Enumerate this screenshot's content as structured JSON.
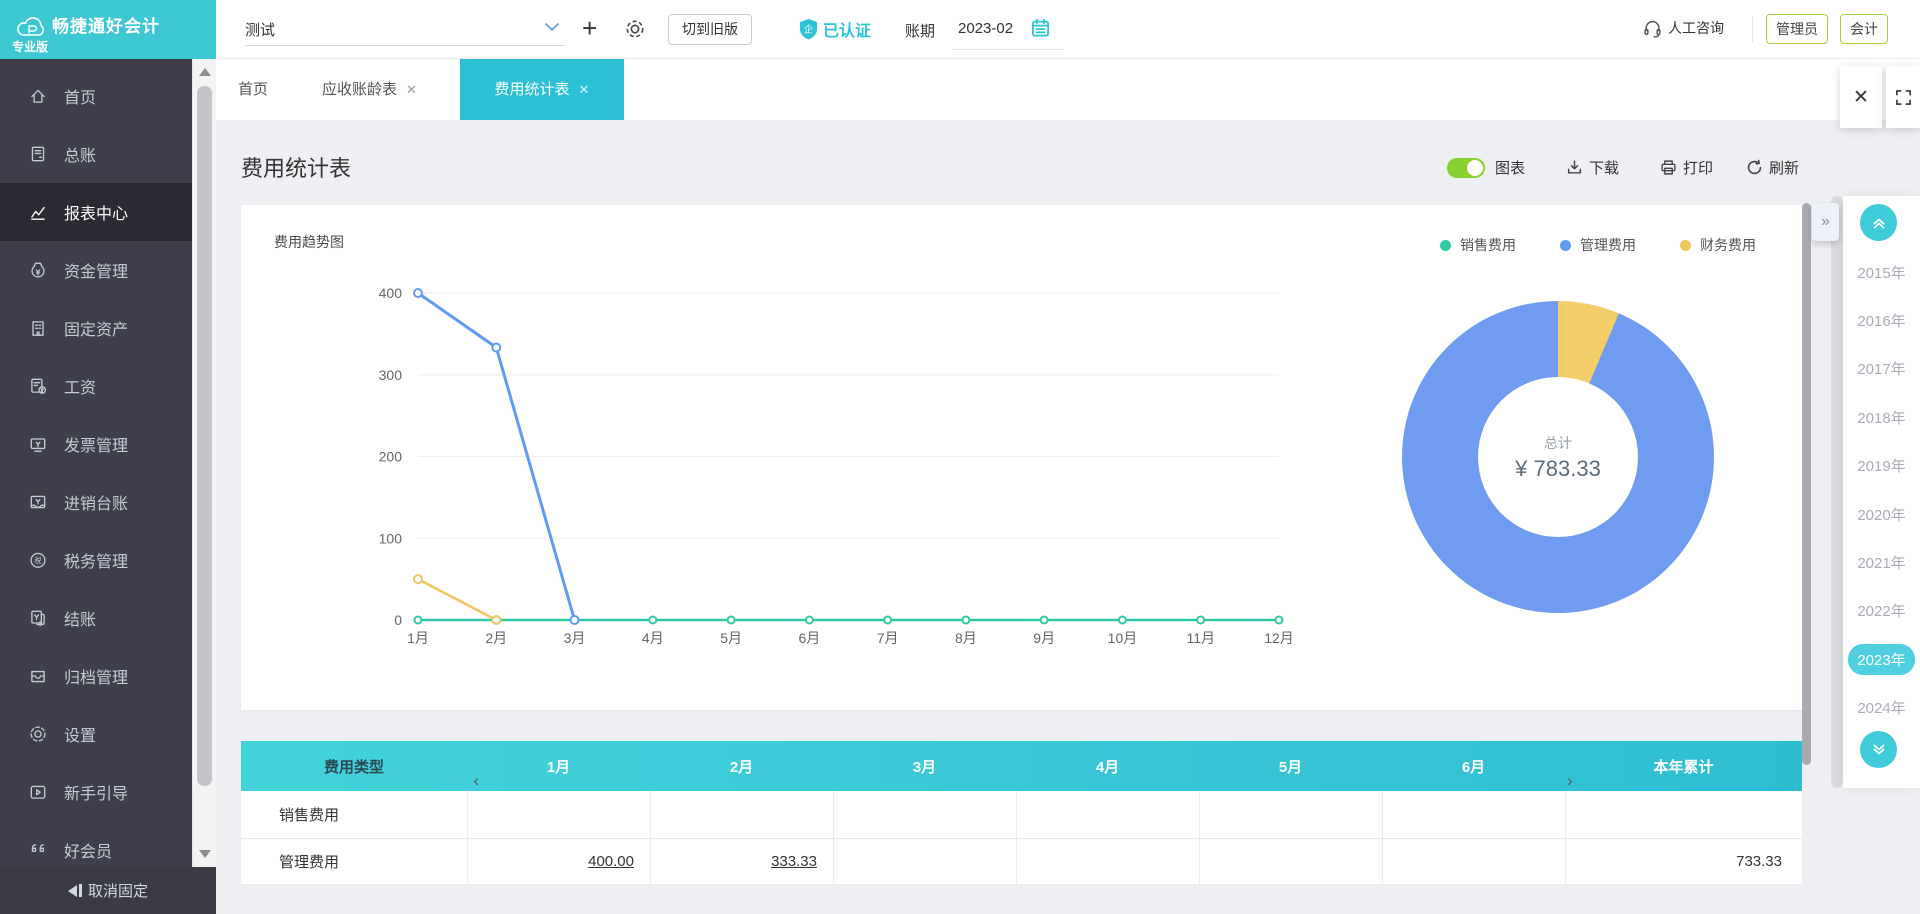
{
  "brand": {
    "name": "畅捷通好会计",
    "edition": "专业版"
  },
  "topbar": {
    "account_name": "测试",
    "switch_old_label": "切到旧版",
    "certified_label": "已认证",
    "period_label": "账期",
    "period_value": "2023-02",
    "support_label": "人工咨询",
    "admin_label": "管理员",
    "accountant_label": "会计"
  },
  "sidebar": {
    "items": [
      {
        "id": "home",
        "label": "首页",
        "active": false
      },
      {
        "id": "ledger",
        "label": "总账",
        "active": false
      },
      {
        "id": "reports",
        "label": "报表中心",
        "active": true
      },
      {
        "id": "funds",
        "label": "资金管理",
        "active": false
      },
      {
        "id": "assets",
        "label": "固定资产",
        "active": false
      },
      {
        "id": "salary",
        "label": "工资",
        "active": false
      },
      {
        "id": "invoice",
        "label": "发票管理",
        "active": false
      },
      {
        "id": "trade",
        "label": "进销台账",
        "active": false
      },
      {
        "id": "tax",
        "label": "税务管理",
        "active": false
      },
      {
        "id": "closing",
        "label": "结账",
        "active": false
      },
      {
        "id": "archive",
        "label": "归档管理",
        "active": false
      },
      {
        "id": "settings",
        "label": "设置",
        "active": false
      },
      {
        "id": "guide",
        "label": "新手引导",
        "active": false
      },
      {
        "id": "member",
        "label": "好会员",
        "active": false
      }
    ],
    "unpin_label": "取消固定"
  },
  "tabs": [
    {
      "label": "首页",
      "closable": false,
      "active": false
    },
    {
      "label": "应收账龄表",
      "closable": true,
      "active": false
    },
    {
      "label": "费用统计表",
      "closable": true,
      "active": true
    }
  ],
  "page": {
    "title": "费用统计表",
    "toolbar": {
      "chart_toggle_label": "图表",
      "toggle_on": true,
      "download_label": "下载",
      "print_label": "打印",
      "refresh_label": "刷新"
    }
  },
  "chart_data": [
    {
      "type": "line",
      "title": "费用趋势图",
      "x": [
        "1月",
        "2月",
        "3月",
        "4月",
        "5月",
        "6月",
        "7月",
        "8月",
        "9月",
        "10月",
        "11月",
        "12月"
      ],
      "series": [
        {
          "name": "销售费用",
          "color": "#32c8a4",
          "values": [
            0,
            0,
            0,
            0,
            0,
            0,
            0,
            0,
            0,
            0,
            0,
            0
          ]
        },
        {
          "name": "管理费用",
          "color": "#5f9bf2",
          "values": [
            400,
            333.33,
            0,
            null,
            null,
            null,
            null,
            null,
            null,
            null,
            null,
            null
          ]
        },
        {
          "name": "财务费用",
          "color": "#f0c55e",
          "values": [
            50,
            0,
            null,
            null,
            null,
            null,
            null,
            null,
            null,
            null,
            null,
            null
          ]
        }
      ],
      "ylim": [
        0,
        400
      ],
      "yticks": [
        0,
        100,
        200,
        300,
        400
      ],
      "grid": true,
      "legend_position": "top-right"
    },
    {
      "type": "pie",
      "donut": true,
      "center_label": "总计",
      "center_value": "¥ 783.33",
      "total": 783.33,
      "slices": [
        {
          "name": "财务费用",
          "value": 50,
          "color": "#f2cd68"
        },
        {
          "name": "管理费用",
          "value": 733.33,
          "color": "#6f9cf1"
        },
        {
          "name": "销售费用",
          "value": 0,
          "color": "#32c8a4"
        }
      ]
    }
  ],
  "year_panel": {
    "years": [
      "2015年",
      "2016年",
      "2017年",
      "2018年",
      "2019年",
      "2020年",
      "2021年",
      "2022年",
      "2023年",
      "2024年"
    ],
    "selected": "2023年"
  },
  "table": {
    "type_header": "费用类型",
    "months": [
      "1月",
      "2月",
      "3月",
      "4月",
      "5月",
      "6月"
    ],
    "total_header": "本年累计",
    "rows": [
      {
        "name": "销售费用",
        "cells": [
          "",
          "",
          "",
          "",
          "",
          ""
        ],
        "total": "",
        "links": []
      },
      {
        "name": "管理费用",
        "cells": [
          "400.00",
          "333.33",
          "",
          "",
          "",
          ""
        ],
        "total": "733.33",
        "links": [
          0,
          1
        ]
      }
    ]
  },
  "colors": {
    "brand_teal": "#3cc7d2",
    "active_tab_teal": "#2cc0d6",
    "table_header_teal": "#38c6d4",
    "toggle_green": "#86d32f",
    "role_button_border": "#a5cf3d",
    "year_selected_teal": "#4ed0e0"
  }
}
